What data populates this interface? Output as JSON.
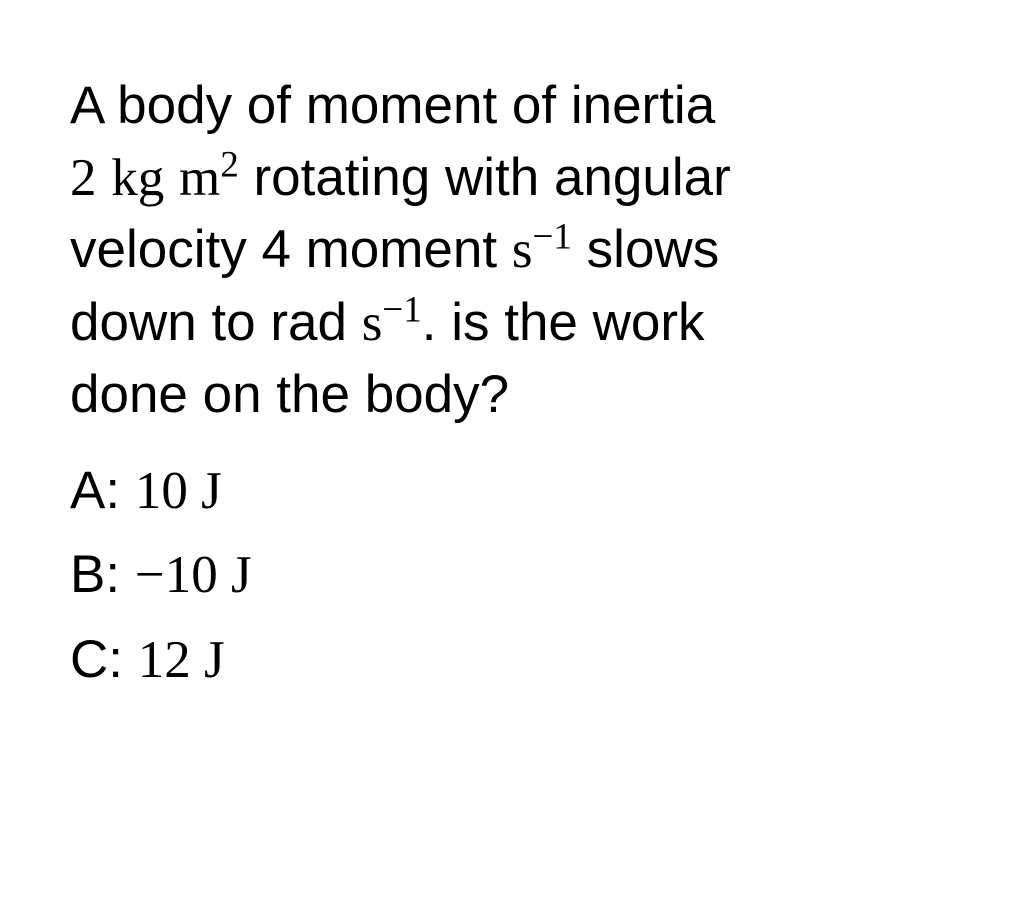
{
  "background_color": "#ffffff",
  "text_color": "#000000",
  "question": {
    "fontsize_pt": 40,
    "line_height": 1.35,
    "parts": {
      "p1": "A body of moment of inertia",
      "p2_num": "2",
      "p2_unit_kg": "kg",
      "p2_unit_m": "m",
      "p2_sup": "2",
      "p3": " rotating with angular",
      "p4": "velocity 4 moment ",
      "p4_s": "s",
      "p4_sup": "−1",
      "p5": " slows",
      "p6": "down to rad ",
      "p6_s": "s",
      "p6_sup": "−1",
      "p7": ". is the work",
      "p8": "done on the body?"
    }
  },
  "options": {
    "fontsize_pt": 40,
    "items": [
      {
        "label": "A:",
        "value": "10 J"
      },
      {
        "label": "B:",
        "value": "−10 J"
      },
      {
        "label": "C:",
        "value": "12 J"
      }
    ]
  }
}
